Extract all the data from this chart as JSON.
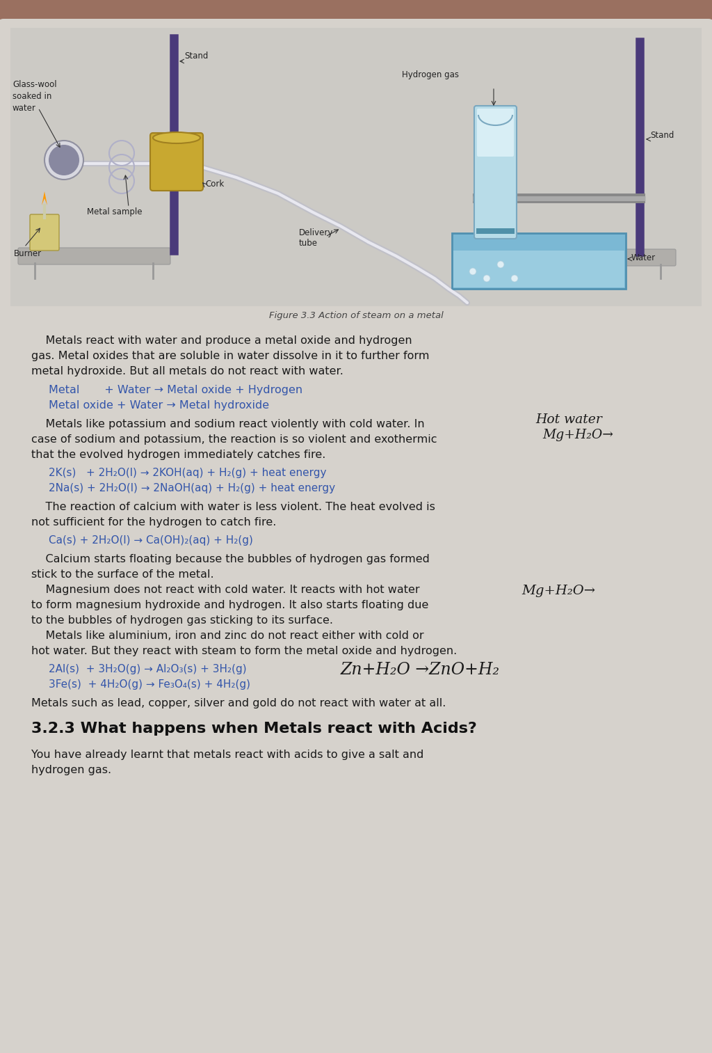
{
  "page_bg": "#d6d0c8",
  "diagram_bg": "#dcdad5",
  "text_bg": "#d4cfc8",
  "figure_caption": "Figure 3.3 Action of steam on a metal",
  "body_text": [
    "    Metals react with water and produce a metal oxide and hydrogen",
    "gas. Metal oxides that are soluble in water dissolve in it to further form",
    "metal hydroxide. But all metals do not react with water."
  ],
  "equation_lines_blue": [
    "Metal       + Water → Metal oxide + Hydrogen",
    "Metal oxide + Water → Metal hydroxide"
  ],
  "para2": [
    "    Metals like potassium and sodium react violently with cold water. In",
    "case of sodium and potassium, the reaction is so violent and exothermic",
    "that the evolved hydrogen immediately catches fire."
  ],
  "chem_eq1": [
    "2K(s)   + 2H₂O(l) → 2KOH(aq) + H₂(g) + heat energy",
    "2Na(s) + 2H₂O(l) → 2NaOH(aq) + H₂(g) + heat energy"
  ],
  "para3": [
    "    The reaction of calcium with water is less violent. The heat evolved is",
    "not sufficient for the hydrogen to catch fire."
  ],
  "chem_eq2": [
    "Ca(s) + 2H₂O(l) → Ca(OH)₂(aq) + H₂(g)"
  ],
  "para4": [
    "    Calcium starts floating because the bubbles of hydrogen gas formed",
    "stick to the surface of the metal.",
    "    Magnesium does not react with cold water. It reacts with hot water",
    "to form magnesium hydroxide and hydrogen. It also starts floating due",
    "to the bubbles of hydrogen gas sticking to its surface.",
    "    Metals like aluminium, iron and zinc do not react either with cold or",
    "hot water. But they react with steam to form the metal oxide and hydrogen."
  ],
  "chem_eq3": [
    "2Al(s)  + 3H₂O(g) → Al₂O₃(s) + 3H₂(g)",
    "3Fe(s)  + 4H₂O(g) → Fe₃O₄(s) + 4H₂(g)"
  ],
  "para5": "Metals such as lead, copper, silver and gold do not react with water at all.",
  "section_heading": "3.2.3 What happens when Metals react with Acids?",
  "para6": [
    "You have already learnt that metals react with acids to give a salt and",
    "hydrogen gas."
  ],
  "handwritten_hot_water": "Hot water",
  "handwritten_mg1": "Mg+H₂O→",
  "handwritten_zn": "Zn+H₂O →ZnO+H₂",
  "handwritten_mg2": "Mg+H₂O→",
  "diagram_labels": {
    "glass_wool": "Glass-wool\nsoaked in\nwater",
    "stand_left": "Stand",
    "hydrogen_gas": "Hydrogen gas",
    "stand_right": "Stand",
    "cork": "Cork",
    "metal_sample": "Metal sample",
    "burner": "Burner",
    "delivery_tube": "Delivery\ntube",
    "water": "Water"
  },
  "text_color": "#1a1a1a",
  "blue_color": "#3355aa",
  "heading_color": "#111111"
}
